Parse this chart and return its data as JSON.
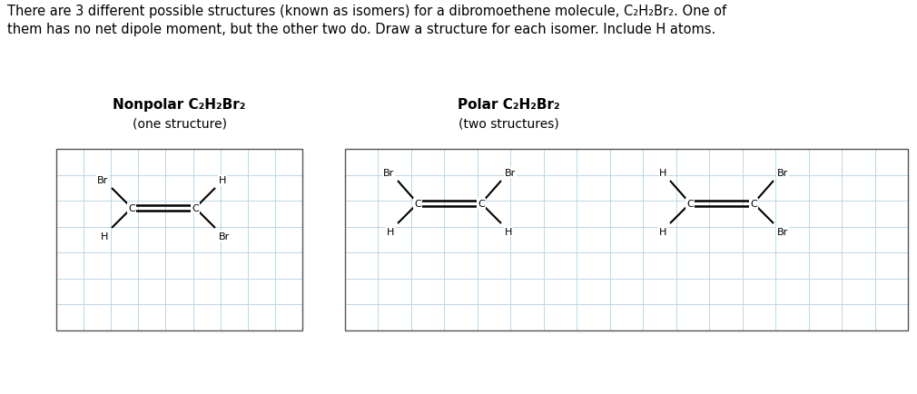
{
  "title_line1": "There are 3 different possible structures (known as isomers) for a dibromoethene molecule, C₂H₂Br₂. One of",
  "title_line2": "them has no net dipole moment, but the other two do. Draw a structure for each isomer. Include H atoms.",
  "nonpolar_label": "Nonpolar C₂H₂Br₂",
  "nonpolar_sub": "(one structure)",
  "polar_label": "Polar C₂H₂Br₂",
  "polar_sub": "(two structures)",
  "bg_color": "#ffffff",
  "grid_color": "#b8d8e8",
  "box_color": "#555555",
  "text_color": "#000000",
  "font_size_title": 10.5,
  "font_size_label": 11,
  "font_size_atom": 8.5
}
